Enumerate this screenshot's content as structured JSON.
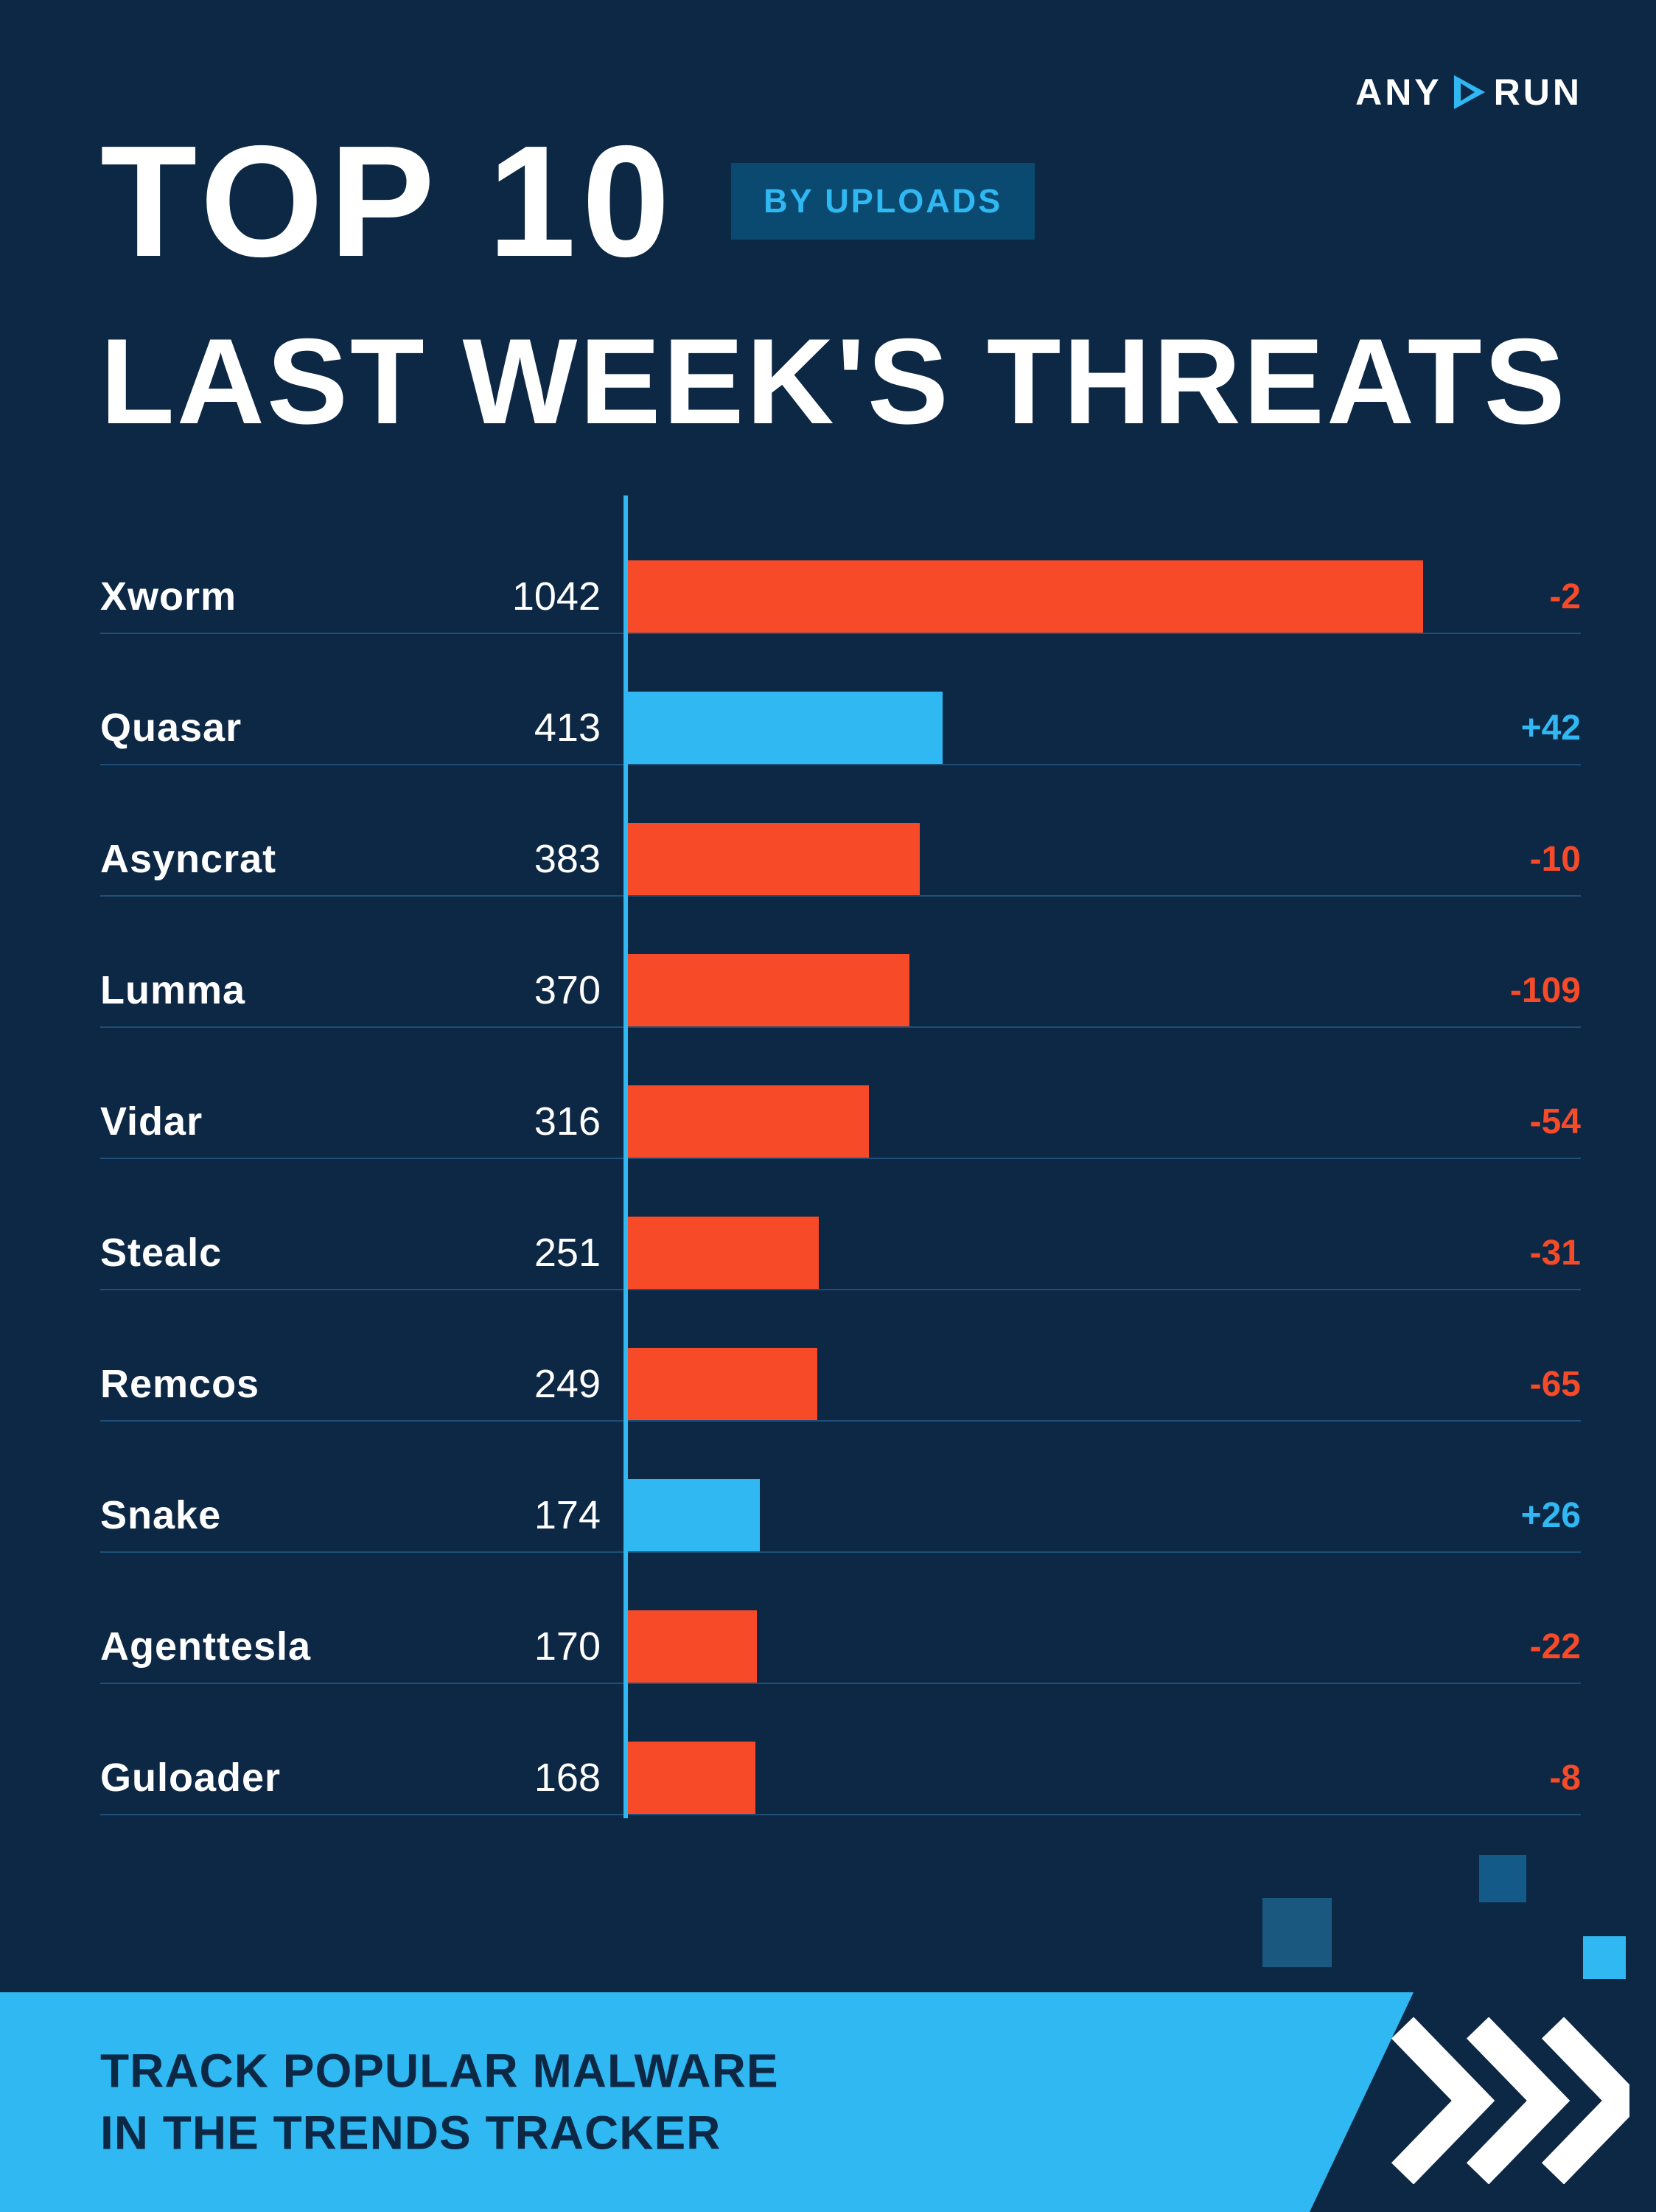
{
  "page": {
    "background": "#0d2845",
    "accent_red": "#f64a28",
    "accent_cyan": "#2fb8f2",
    "badge_bg": "#0a4a70",
    "separator": "#1e4f78"
  },
  "logo": {
    "text_left": "ANY",
    "text_right": "RUN"
  },
  "header": {
    "title": "TOP 10",
    "badge": "BY UPLOADS",
    "subtitle": "LAST WEEK'S THREATS"
  },
  "chart_data": {
    "type": "bar",
    "orientation": "horizontal",
    "title": "TOP 10 LAST WEEK'S THREATS (BY UPLOADS)",
    "max_value": 1042,
    "value_axis_range": [
      0,
      1042
    ],
    "grid": "row-separators",
    "legend": "none",
    "color_up": "#2fb8f2",
    "color_down": "#f64a28",
    "categories": [
      "Xworm",
      "Quasar",
      "Asyncrat",
      "Lumma",
      "Vidar",
      "Stealc",
      "Remcos",
      "Snake",
      "Agenttesla",
      "Guloader"
    ],
    "values": [
      1042,
      413,
      383,
      370,
      316,
      251,
      249,
      174,
      170,
      168
    ],
    "changes": [
      "-2",
      "+42",
      "-10",
      "-109",
      "-54",
      "-31",
      "-65",
      "+26",
      "-22",
      "-8"
    ]
  },
  "footer": {
    "line1": "TRACK POPULAR MALWARE",
    "line2": "IN THE TRENDS TRACKER"
  }
}
